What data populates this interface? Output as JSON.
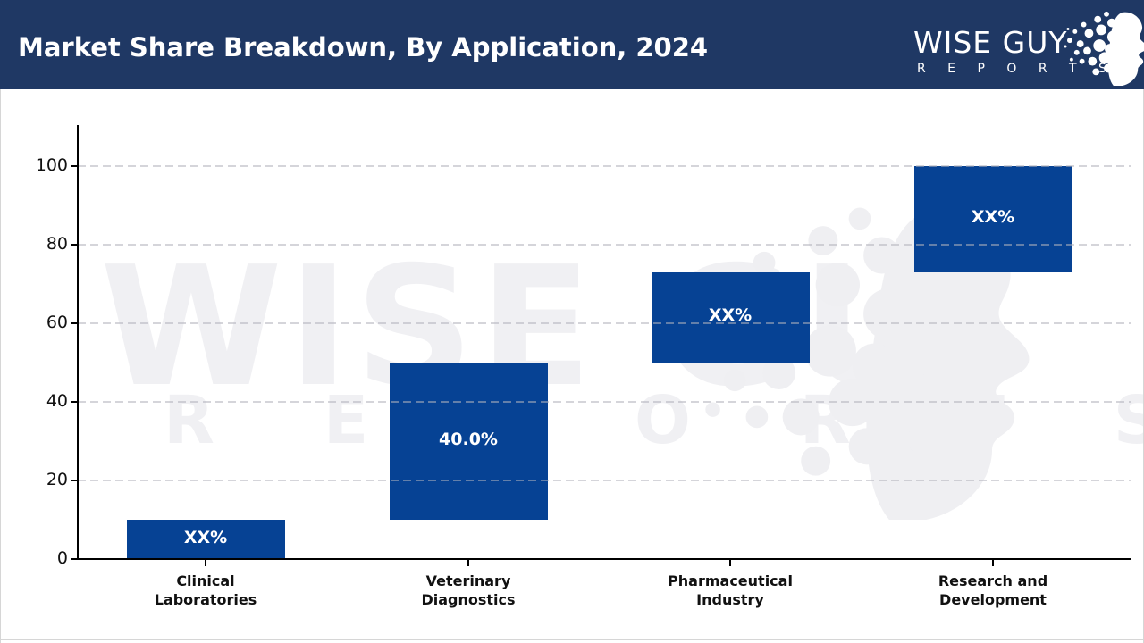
{
  "header": {
    "title": "Market Share Breakdown, By Application, 2024",
    "logo": {
      "name_line": "WISE GUY",
      "sub_line": "R E P O R T S"
    }
  },
  "watermark": {
    "line1": "WISE GU",
    "line2": "R E P O R T S"
  },
  "colors": {
    "header_bg": "#1f3864",
    "bar": "#064294",
    "bar_label": "#ffffff",
    "axis": "#000000",
    "grid": "#d9d9d9",
    "watermark": "#f0f0f3"
  },
  "chart_data": {
    "type": "bar",
    "subtype": "floating-waterfall",
    "title": "Market Share Breakdown, By Application, 2024",
    "categories": [
      [
        "Clinical",
        "Laboratories"
      ],
      [
        "Veterinary",
        "Diagnostics"
      ],
      [
        "Pharmaceutical",
        "Industry"
      ],
      [
        "Research and",
        "Development"
      ]
    ],
    "segments": [
      {
        "category": "Clinical Laboratories",
        "label": "XX%",
        "start": 0,
        "end": 10
      },
      {
        "category": "Veterinary Diagnostics",
        "label": "40.0%",
        "start": 10,
        "end": 50,
        "value": 40.0
      },
      {
        "category": "Pharmaceutical Industry",
        "label": "XX%",
        "start": 50,
        "end": 73
      },
      {
        "category": "Research and Development",
        "label": "XX%",
        "start": 73,
        "end": 100
      }
    ],
    "xlabel": "",
    "ylabel": "",
    "ylim": [
      0,
      100
    ],
    "yticks": [
      0,
      20,
      40,
      60,
      80,
      100
    ],
    "grid": "horizontal-dashed",
    "legend": "none"
  }
}
